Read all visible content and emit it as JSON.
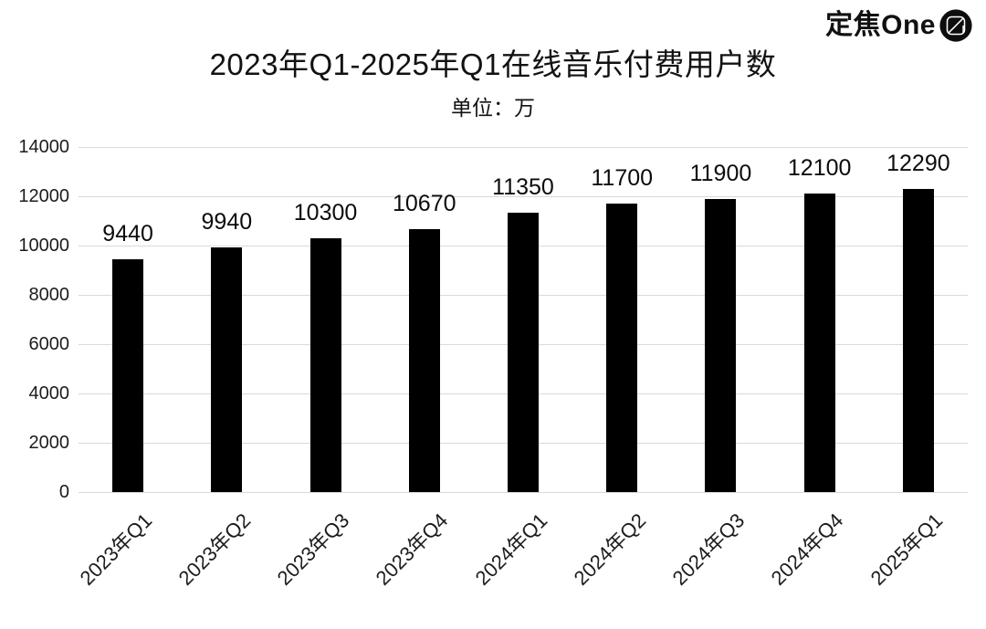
{
  "header": {
    "title": "2023年Q1-2025年Q1在线音乐付费用户数",
    "subtitle": "单位：万",
    "brand": {
      "name": "定焦One",
      "logo_icon": "focus-frame-icon"
    }
  },
  "chart_data": {
    "type": "bar",
    "title": "2023年Q1-2025年Q1在线音乐付费用户数",
    "unit_label": "单位：万",
    "categories": [
      "2023年Q1",
      "2023年Q2",
      "2023年Q3",
      "2023年Q4",
      "2024年Q1",
      "2024年Q2",
      "2024年Q3",
      "2024年Q4",
      "2025年Q1"
    ],
    "values": [
      9440,
      9940,
      10300,
      10670,
      11350,
      11700,
      11900,
      12100,
      12290
    ],
    "xlabel": "",
    "ylabel": "",
    "ylim": [
      0,
      14000
    ],
    "yticks": [
      0,
      2000,
      4000,
      6000,
      8000,
      10000,
      12000,
      14000
    ],
    "grid": true,
    "legend": "none",
    "value_labels_shown": true,
    "xtick_rotation_deg": 45,
    "bar_color": "#000000",
    "gridline_color": "#d9d9d9",
    "text_color": "#1c1c1c",
    "background_color": "#ffffff"
  }
}
